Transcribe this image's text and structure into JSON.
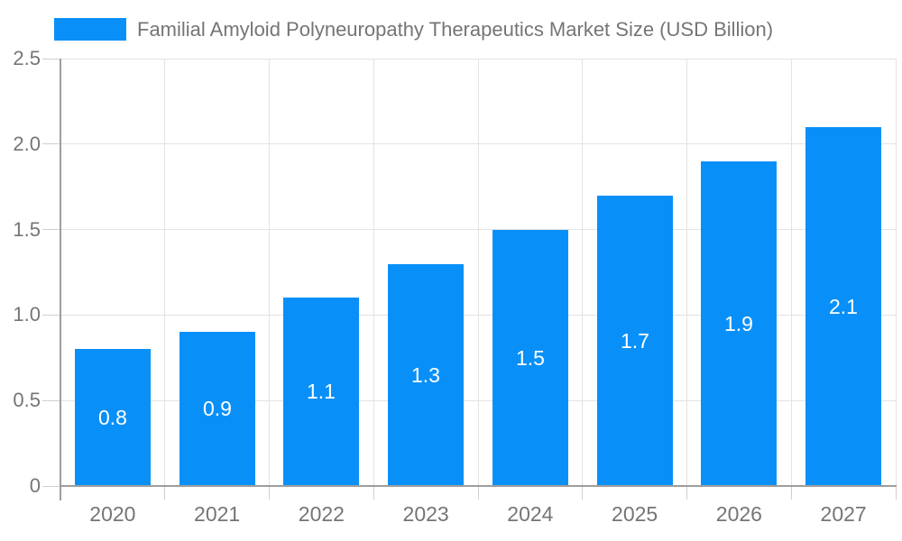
{
  "chart_data": {
    "type": "bar",
    "title": "Familial Amyloid Polyneuropathy Therapeutics Market Size (USD Billion)",
    "categories": [
      "2020",
      "2021",
      "2022",
      "2023",
      "2024",
      "2025",
      "2026",
      "2027"
    ],
    "values": [
      0.8,
      0.9,
      1.1,
      1.3,
      1.5,
      1.7,
      1.9,
      2.1
    ],
    "bar_labels": [
      "0.8",
      "0.9",
      "1.1",
      "1.3",
      "1.5",
      "1.7",
      "1.9",
      "2.1"
    ],
    "xlabel": "",
    "ylabel": "",
    "ylim": [
      0,
      2.5
    ],
    "yticks": [
      0,
      0.5,
      1,
      1.5,
      2,
      2.5
    ],
    "ytick_labels": [
      "0",
      "0.5",
      "1.0",
      "1.5",
      "2.0",
      "2.5"
    ],
    "grid": true,
    "legend_position": "top-left"
  },
  "colors": {
    "bar": "#0990f8",
    "grid": "#e3e3e3",
    "axis": "#9e9e9e",
    "tick": "#cfcfcf",
    "label_text": "#757575",
    "value_text": "#ffffff",
    "background": "#ffffff"
  }
}
